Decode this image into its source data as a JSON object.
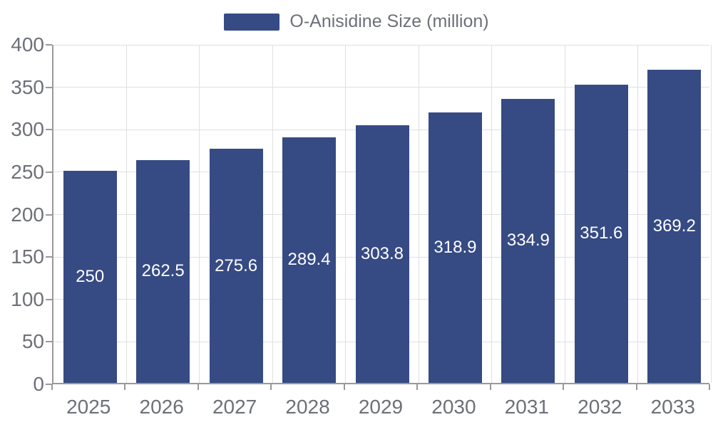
{
  "legend": {
    "label": "O-Anisidine Size (million)"
  },
  "colors": {
    "bar": "#364a84",
    "axis_label": "#6e7079",
    "grid_line": "#e0e0e0",
    "axis_line": "#999999",
    "value_label": "#ffffff",
    "background": "#ffffff"
  },
  "chart_data": {
    "type": "bar",
    "title": "O-Anisidine Size (million)",
    "categories": [
      "2025",
      "2026",
      "2027",
      "2028",
      "2029",
      "2030",
      "2031",
      "2032",
      "2033"
    ],
    "values": [
      250,
      262.5,
      275.6,
      289.4,
      303.8,
      318.9,
      334.9,
      351.6,
      369.2
    ],
    "value_labels": [
      "250",
      "262.5",
      "275.6",
      "289.4",
      "303.8",
      "318.9",
      "334.9",
      "351.6",
      "369.2"
    ],
    "series_name": "O-Anisidine Size (million)",
    "xlabel": "",
    "ylabel": "",
    "ylim": [
      0,
      400
    ],
    "y_ticks": [
      0,
      50,
      100,
      150,
      200,
      250,
      300,
      350,
      400
    ],
    "grid": true,
    "legend_position": "top-center",
    "value_label_position": "inside-center"
  }
}
